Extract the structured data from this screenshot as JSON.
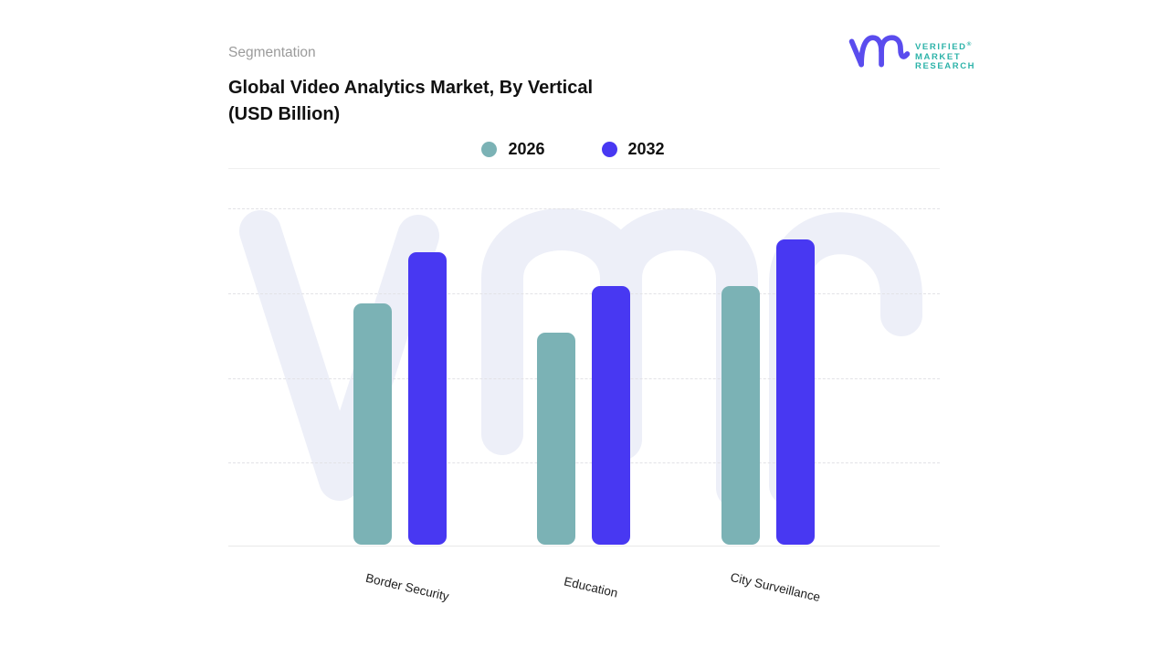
{
  "header": {
    "eyebrow": "Segmentation",
    "title_line1": "Global Video Analytics Market, By Vertical",
    "title_line2": "(USD Billion)"
  },
  "logo": {
    "brand_lines": [
      "VERIFIED",
      "MARKET",
      "RESEARCH"
    ],
    "registered_mark": "®",
    "mark_color": "#5a4cee",
    "text_color": "#2db3a9"
  },
  "legend": [
    {
      "label": "2026",
      "color": "#7bb2b5"
    },
    {
      "label": "2032",
      "color": "#4838f2"
    }
  ],
  "chart_data": {
    "type": "bar",
    "title": "Global Video Analytics Market, By Vertical (USD Billion)",
    "categories": [
      "Border Security",
      "Education",
      "City Surveillance"
    ],
    "series": [
      {
        "name": "2026",
        "color": "#7bb2b5",
        "values": [
          2.85,
          2.5,
          3.05
        ]
      },
      {
        "name": "2032",
        "color": "#4838f2",
        "values": [
          3.45,
          3.05,
          3.6
        ]
      }
    ],
    "ylim": [
      0,
      4
    ],
    "yticks_labeled": false,
    "note": "values estimated from dashed gridline spacing; no numeric axis labels visible",
    "grid": "horizontal-dashed",
    "legend_position": "top-center",
    "xlabel": "",
    "ylabel": ""
  },
  "watermark": {
    "label": "vmr",
    "color": "#edeff8"
  }
}
